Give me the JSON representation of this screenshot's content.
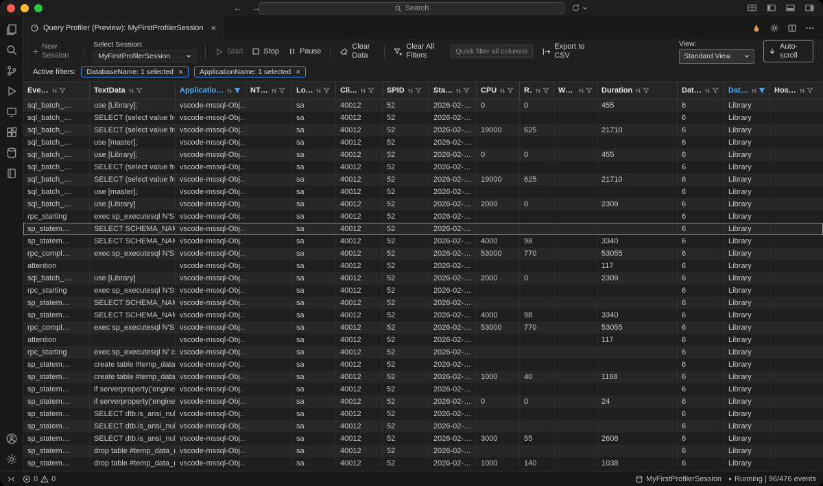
{
  "titlebar": {
    "search_placeholder": "Search"
  },
  "tab": {
    "title": "Query Profiler (Preview): MyFirstProfilerSession"
  },
  "toolbar": {
    "new_session_label": "New Session",
    "select_session_label": "Select Session:",
    "session_value": "MyFirstProfilerSession",
    "start_label": "Start",
    "stop_label": "Stop",
    "pause_label": "Pause",
    "clear_data_label": "Clear Data",
    "clear_all_filters_label": "Clear All Filters",
    "quick_filter_placeholder": "Quick filter all columns...",
    "export_csv_label": "Export to CSV",
    "view_label": "View:",
    "view_value": "Standard View",
    "autoscroll_label": "Auto-scroll"
  },
  "filters": {
    "label": "Active filters:",
    "chips": [
      "DatabaseName: 1 selected",
      "ApplicationName: 1 selected"
    ]
  },
  "table": {
    "focused_row": 10,
    "columns": [
      {
        "key": "eventclass",
        "label": "Eve…",
        "width": 97
      },
      {
        "key": "textdata",
        "label": "TextData",
        "width": 125
      },
      {
        "key": "applicationname",
        "label": "Applicatio…",
        "width": 103,
        "filtered": true
      },
      {
        "key": "ntusername",
        "label": "NT…",
        "width": 67
      },
      {
        "key": "loginname",
        "label": "Lo…",
        "width": 64
      },
      {
        "key": "clientprocessid",
        "label": "Cli…",
        "width": 68
      },
      {
        "key": "spid",
        "label": "SPID",
        "width": 68
      },
      {
        "key": "starttime",
        "label": "Sta…",
        "width": 69
      },
      {
        "key": "cpu",
        "label": "CPU",
        "width": 63
      },
      {
        "key": "reads",
        "label": "Rea…",
        "width": 50
      },
      {
        "key": "writes",
        "label": "Writ…",
        "width": 63
      },
      {
        "key": "duration",
        "label": "Duration",
        "width": 117
      },
      {
        "key": "databaseid",
        "label": "Dat…",
        "width": 68
      },
      {
        "key": "databasename",
        "label": "Dat…",
        "width": 67,
        "filtered": true
      },
      {
        "key": "hostname",
        "label": "Hos…",
        "width": 78
      }
    ],
    "rows": [
      [
        "sql_batch_…",
        "use [Library];",
        "vscode-mssql-Obj…",
        "",
        "sa",
        "40012",
        "52",
        "2026-02-…",
        "0",
        "0",
        "",
        "455",
        "6",
        "Library",
        ""
      ],
      [
        "sql_batch_…",
        "SELECT (select value from …",
        "vscode-mssql-Obj…",
        "",
        "sa",
        "40012",
        "52",
        "2026-02-…",
        "",
        "",
        "",
        "",
        "6",
        "Library",
        ""
      ],
      [
        "sql_batch_…",
        "SELECT (select value from …",
        "vscode-mssql-Obj…",
        "",
        "sa",
        "40012",
        "52",
        "2026-02-…",
        "19000",
        "625",
        "",
        "21710",
        "6",
        "Library",
        ""
      ],
      [
        "sql_batch_…",
        "use [master];",
        "vscode-mssql-Obj…",
        "",
        "sa",
        "40012",
        "52",
        "2026-02-…",
        "",
        "",
        "",
        "",
        "6",
        "Library",
        ""
      ],
      [
        "sql_batch_…",
        "use [Library];",
        "vscode-mssql-Obj…",
        "",
        "sa",
        "40012",
        "52",
        "2026-02-…",
        "0",
        "0",
        "",
        "455",
        "6",
        "Library",
        ""
      ],
      [
        "sql_batch_…",
        "SELECT (select value from …",
        "vscode-mssql-Obj…",
        "",
        "sa",
        "40012",
        "52",
        "2026-02-…",
        "",
        "",
        "",
        "",
        "6",
        "Library",
        ""
      ],
      [
        "sql_batch_…",
        "SELECT (select value from …",
        "vscode-mssql-Obj…",
        "",
        "sa",
        "40012",
        "52",
        "2026-02-…",
        "19000",
        "625",
        "",
        "21710",
        "6",
        "Library",
        ""
      ],
      [
        "sql_batch_…",
        "use [master];",
        "vscode-mssql-Obj…",
        "",
        "sa",
        "40012",
        "52",
        "2026-02-…",
        "",
        "",
        "",
        "",
        "6",
        "Library",
        ""
      ],
      [
        "sql_batch_…",
        "use [Library]",
        "vscode-mssql-Obj…",
        "",
        "sa",
        "40012",
        "52",
        "2026-02-…",
        "2000",
        "0",
        "",
        "2309",
        "6",
        "Library",
        ""
      ],
      [
        "rpc_starting",
        "exec sp_executesql N'SEL…",
        "vscode-mssql-Obj…",
        "",
        "sa",
        "40012",
        "52",
        "2026-02-…",
        "",
        "",
        "",
        "",
        "6",
        "Library",
        ""
      ],
      [
        "sp_statem…",
        "SELECT SCHEMA_NAME(t…",
        "vscode-mssql-Obj…",
        "",
        "sa",
        "40012",
        "52",
        "2026-02-…",
        "",
        "",
        "",
        "",
        "6",
        "Library",
        ""
      ],
      [
        "sp_statem…",
        "SELECT SCHEMA_NAME(t…",
        "vscode-mssql-Obj…",
        "",
        "sa",
        "40012",
        "52",
        "2026-02-…",
        "4000",
        "98",
        "",
        "3340",
        "6",
        "Library",
        ""
      ],
      [
        "rpc_compl…",
        "exec sp_executesql N'SEL…",
        "vscode-mssql-Obj…",
        "",
        "sa",
        "40012",
        "52",
        "2026-02-…",
        "53000",
        "770",
        "",
        "53055",
        "6",
        "Library",
        ""
      ],
      [
        "attention",
        "",
        "vscode-mssql-Obj…",
        "",
        "sa",
        "40012",
        "52",
        "2026-02-…",
        "",
        "",
        "",
        "117",
        "6",
        "Library",
        ""
      ],
      [
        "sql_batch_…",
        "use [Library]",
        "vscode-mssql-Obj…",
        "",
        "sa",
        "40012",
        "52",
        "2026-02-…",
        "2000",
        "0",
        "",
        "2309",
        "6",
        "Library",
        ""
      ],
      [
        "rpc_starting",
        "exec sp_executesql N'SEL…",
        "vscode-mssql-Obj…",
        "",
        "sa",
        "40012",
        "52",
        "2026-02-…",
        "",
        "",
        "",
        "",
        "6",
        "Library",
        ""
      ],
      [
        "sp_statem…",
        "SELECT SCHEMA_NAME(t…",
        "vscode-mssql-Obj…",
        "",
        "sa",
        "40012",
        "52",
        "2026-02-…",
        "",
        "",
        "",
        "",
        "6",
        "Library",
        ""
      ],
      [
        "sp_statem…",
        "SELECT SCHEMA_NAME(t…",
        "vscode-mssql-Obj…",
        "",
        "sa",
        "40012",
        "52",
        "2026-02-…",
        "4000",
        "98",
        "",
        "3340",
        "6",
        "Library",
        ""
      ],
      [
        "rpc_compl…",
        "exec sp_executesql N'SEL…",
        "vscode-mssql-Obj…",
        "",
        "sa",
        "40012",
        "52",
        "2026-02-…",
        "53000",
        "770",
        "",
        "53055",
        "6",
        "Library",
        ""
      ],
      [
        "attention",
        "",
        "vscode-mssql-Obj…",
        "",
        "sa",
        "40012",
        "52",
        "2026-02-…",
        "",
        "",
        "",
        "117",
        "6",
        "Library",
        ""
      ],
      [
        "rpc_starting",
        "exec sp_executesql N' crea…",
        "vscode-mssql-Obj…",
        "",
        "sa",
        "40012",
        "52",
        "2026-02-…",
        "",
        "",
        "",
        "",
        "6",
        "Library",
        ""
      ],
      [
        "sp_statem…",
        "create table #temp_data_r…",
        "vscode-mssql-Obj…",
        "",
        "sa",
        "40012",
        "52",
        "2026-02-…",
        "",
        "",
        "",
        "",
        "6",
        "Library",
        ""
      ],
      [
        "sp_statem…",
        "create table #temp_data_r…",
        "vscode-mssql-Obj…",
        "",
        "sa",
        "40012",
        "52",
        "2026-02-…",
        "1000",
        "40",
        "",
        "1168",
        "6",
        "Library",
        ""
      ],
      [
        "sp_statem…",
        "if serverproperty('enginee…",
        "vscode-mssql-Obj…",
        "",
        "sa",
        "40012",
        "52",
        "2026-02-…",
        "",
        "",
        "",
        "",
        "6",
        "Library",
        ""
      ],
      [
        "sp_statem…",
        "if serverproperty('enginee…",
        "vscode-mssql-Obj…",
        "",
        "sa",
        "40012",
        "52",
        "2026-02-…",
        "0",
        "0",
        "",
        "24",
        "6",
        "Library",
        ""
      ],
      [
        "sp_statem…",
        "SELECT dtb.is_ansi_null_d…",
        "vscode-mssql-Obj…",
        "",
        "sa",
        "40012",
        "52",
        "2026-02-…",
        "",
        "",
        "",
        "",
        "6",
        "Library",
        ""
      ],
      [
        "sp_statem…",
        "SELECT dtb.is_ansi_null_d…",
        "vscode-mssql-Obj…",
        "",
        "sa",
        "40012",
        "52",
        "2026-02-…",
        "",
        "",
        "",
        "",
        "6",
        "Library",
        ""
      ],
      [
        "sp_statem…",
        "SELECT dtb.is_ansi_null_d…",
        "vscode-mssql-Obj…",
        "",
        "sa",
        "40012",
        "52",
        "2026-02-…",
        "3000",
        "55",
        "",
        "2608",
        "6",
        "Library",
        ""
      ],
      [
        "sp_statem…",
        "drop table #temp_data_ret…",
        "vscode-mssql-Obj…",
        "",
        "sa",
        "40012",
        "52",
        "2026-02-…",
        "",
        "",
        "",
        "",
        "6",
        "Library",
        ""
      ],
      [
        "sp_statem…",
        "drop table #temp_data_ret…",
        "vscode-mssql-Obj…",
        "",
        "sa",
        "40012",
        "52",
        "2026-02-…",
        "1000",
        "140",
        "",
        "1038",
        "6",
        "Library",
        ""
      ]
    ]
  },
  "statusbar": {
    "errors": "0",
    "warnings": "0",
    "session_name": "MyFirstProfilerSession",
    "status_text": "Running | 96/476 events"
  },
  "colors": {
    "accent_blue": "#4daafc",
    "chip_border": "#3b8eea",
    "traffic_red": "#ff5f57",
    "traffic_yellow": "#febc2e",
    "traffic_green": "#28c840",
    "flame_orange": "#e8934a"
  }
}
